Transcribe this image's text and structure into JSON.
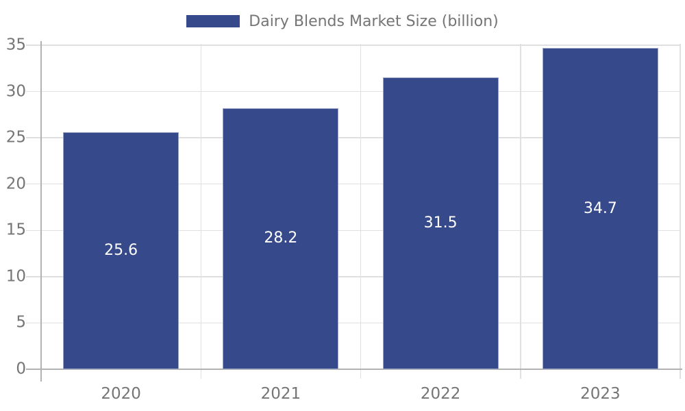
{
  "chart_data": {
    "type": "bar",
    "title": "Dairy Blends Market Size (billion)",
    "legend_position": "top",
    "categories": [
      "2020",
      "2021",
      "2022",
      "2023"
    ],
    "values": [
      25.6,
      28.2,
      31.5,
      34.7
    ],
    "value_labels": [
      "25.6",
      "28.2",
      "31.5",
      "34.7"
    ],
    "xlabel": "",
    "ylabel": "",
    "ylim": [
      0,
      35
    ],
    "yticks": [
      0,
      5,
      10,
      15,
      20,
      25,
      30,
      35
    ],
    "grid": true,
    "colors": {
      "bar": "#364a8b",
      "text": "#757575",
      "grid": "#e0e0e0",
      "axis": "#b2b2b2",
      "value_label": "#ffffff",
      "background": "#ffffff"
    }
  }
}
